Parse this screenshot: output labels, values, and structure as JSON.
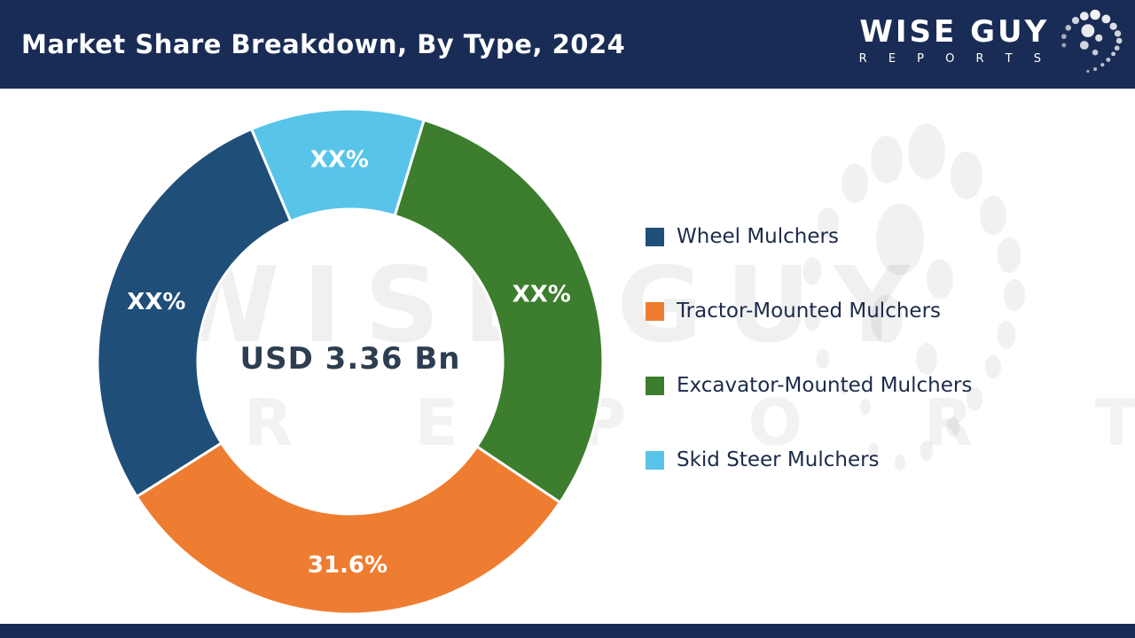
{
  "header": {
    "title": "Market Share Breakdown, By Type, 2024",
    "brand": {
      "line1": "WISE GUY",
      "line2": "R E P O R T S"
    }
  },
  "watermark": {
    "line1": "WISE GUY",
    "line2": "R E P O R T S"
  },
  "chart_data": {
    "type": "pie",
    "subtype": "donut",
    "title": "Market Share Breakdown, By Type, 2024",
    "center_text": "USD 3.36 Bn",
    "legend_position": "right",
    "donut": {
      "start_angle_deg": -23,
      "direction": "counterclockwise",
      "inner_radius_ratio": 0.6
    },
    "segments": [
      {
        "label": "Wheel Mulchers",
        "display_label": "XX%",
        "value": 27.6,
        "color": "#1f4e79"
      },
      {
        "label": "Tractor-Mounted Mulchers",
        "display_label": "31.6%",
        "value": 31.6,
        "color": "#ee7d31"
      },
      {
        "label": "Excavator-Mounted Mulchers",
        "display_label": "XX%",
        "value": 29.7,
        "color": "#3c7d2e"
      },
      {
        "label": "Skid Steer Mulchers",
        "display_label": "XX%",
        "value": 11.1,
        "color": "#58c4e9"
      }
    ]
  }
}
